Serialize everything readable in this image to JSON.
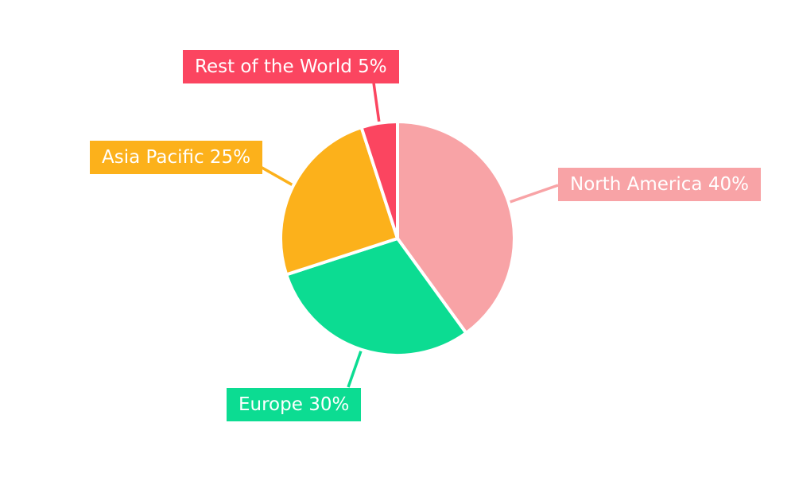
{
  "page": {
    "background_color": "#ffffff"
  },
  "chart_data": {
    "type": "pie",
    "direction": "clockwise",
    "start_angle_deg": 0,
    "slice_border_color": "#ffffff",
    "label_text_color": "#ffffff",
    "slices": [
      {
        "label": "North America",
        "value": 40,
        "display_label": "North America 40%",
        "color": "#F8A3A6"
      },
      {
        "label": "Europe",
        "value": 30,
        "display_label": "Europe 30%",
        "color": "#0CDC92"
      },
      {
        "label": "Asia Pacific",
        "value": 25,
        "display_label": "Asia Pacific 25%",
        "color": "#FCB11B"
      },
      {
        "label": "Rest of the World",
        "value": 5,
        "display_label": "Rest of the World 5%",
        "color": "#FB4560"
      }
    ]
  }
}
